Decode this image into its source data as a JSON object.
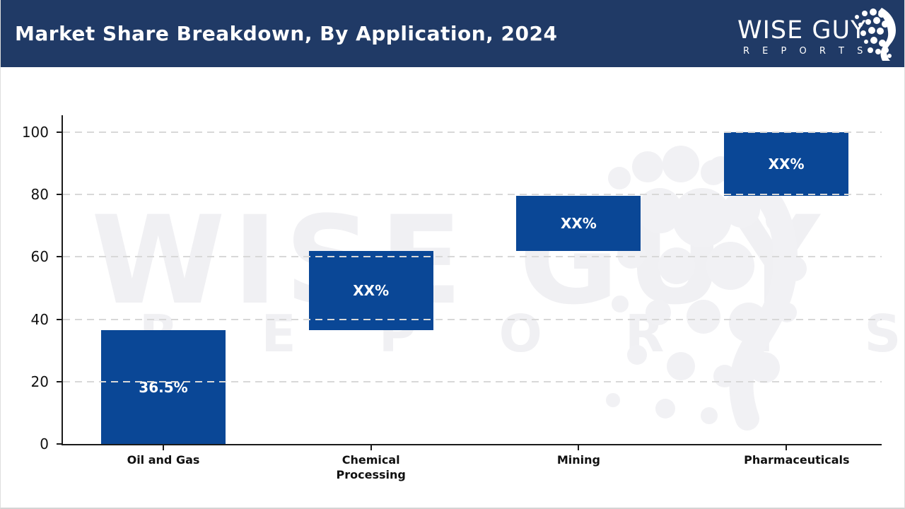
{
  "header": {
    "title": "Market Share Breakdown, By Application, 2024",
    "bg_color": "#203a66",
    "logo": {
      "line1": "WISE GUY",
      "line2": "R E P O R T S"
    }
  },
  "watermark": {
    "line1": "WISE GUY",
    "line2": "R E P O R T S"
  },
  "chart_data": {
    "type": "bar",
    "subtype": "floating-waterfall-segments",
    "title": "Market Share Breakdown, By Application, 2024",
    "categories": [
      "Oil and Gas",
      "Chemical Processing",
      "Mining",
      "Pharmaceuticals"
    ],
    "segments": [
      {
        "category": "Oil and Gas",
        "start": 0,
        "end": 36.5,
        "label": "36.5%"
      },
      {
        "category": "Chemical Processing",
        "start": 36.5,
        "end": 62,
        "label": "XX%"
      },
      {
        "category": "Mining",
        "start": 62,
        "end": 79.5,
        "label": "XX%"
      },
      {
        "category": "Pharmaceuticals",
        "start": 79.5,
        "end": 100,
        "label": "XX%"
      }
    ],
    "ylim": [
      0,
      100
    ],
    "yticks": [
      0,
      20,
      40,
      60,
      80,
      100
    ],
    "xlabel": "",
    "ylabel": "",
    "legend": "none",
    "grid": "dashed-horizontal",
    "grid_color": "#d8d8d8",
    "bar_color": "#0a4796",
    "axis_color": "#1a1a1a",
    "label_color_on_bar": "#ffffff"
  }
}
